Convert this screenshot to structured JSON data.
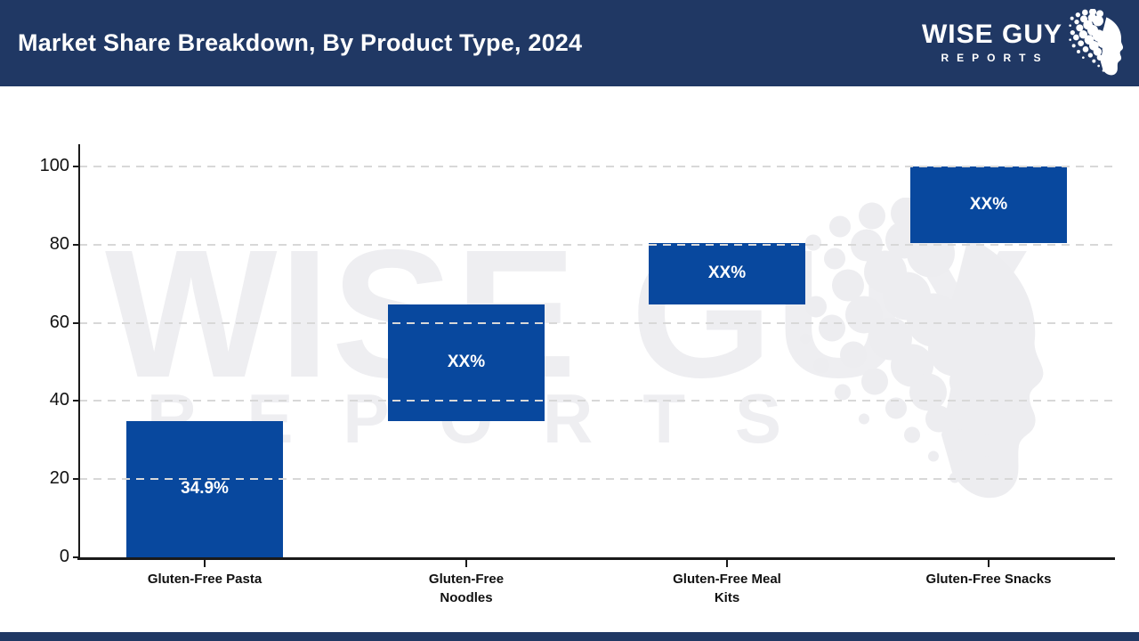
{
  "header": {
    "title": "Market Share Breakdown, By Product Type, 2024",
    "bg_color": "#203864",
    "logo": {
      "line1": "WISE GUY",
      "line2": "REPORTS"
    }
  },
  "watermark": {
    "line1": "WISE GUY",
    "line2": "REPORTS"
  },
  "footer": {
    "bg_color": "#203864"
  },
  "chart_data": {
    "type": "bar",
    "subtype": "waterfall-floating-bars",
    "title": "Market Share Breakdown, By Product Type, 2024",
    "categories": [
      "Gluten-Free Pasta",
      "Gluten-Free Noodles",
      "Gluten-Free Meal Kits",
      "Gluten-Free Snacks"
    ],
    "category_label_lines": [
      [
        "Gluten-Free Pasta"
      ],
      [
        "Gluten-Free",
        "Noodles"
      ],
      [
        "Gluten-Free Meal",
        "Kits"
      ],
      [
        "Gluten-Free Snacks"
      ]
    ],
    "segments": [
      {
        "start": 0,
        "end": 34.9,
        "label": "34.9%"
      },
      {
        "start": 34.9,
        "end": 64.7,
        "label": "XX%"
      },
      {
        "start": 64.7,
        "end": 80.5,
        "label": "XX%"
      },
      {
        "start": 80.5,
        "end": 100,
        "label": "XX%"
      }
    ],
    "y_ticks": [
      0,
      20,
      40,
      60,
      80,
      100
    ],
    "ylim": [
      0,
      105
    ],
    "grid": "horizontal-dashed",
    "gridline_color": "#d8d8d8",
    "bar_color": "#08489E",
    "bar_label_color": "#ffffff",
    "axis_color": "#1a1a1a",
    "legend": "none"
  }
}
